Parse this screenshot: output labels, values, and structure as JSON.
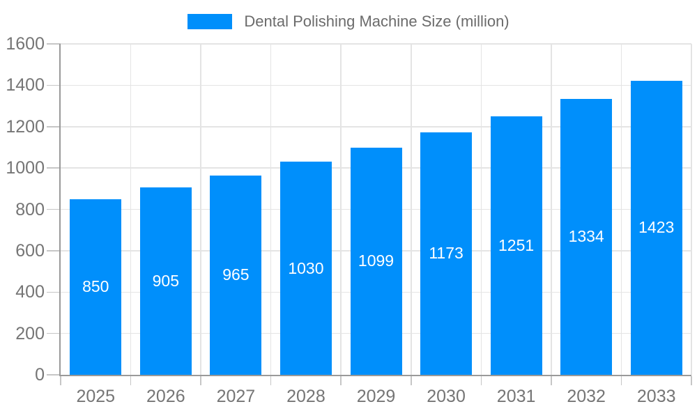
{
  "legend": {
    "label": "Dental Polishing Machine Size (million)"
  },
  "colors": {
    "bar": "#008FFB",
    "grid": "#e4e4e4",
    "axis_line": "#999999",
    "tick": "#c6c6c6",
    "axis_label": "#757575",
    "legend_label": "#6b6b6b",
    "bar_label": "#ffffff",
    "background": "#ffffff"
  },
  "chart_data": {
    "type": "bar",
    "title": "Dental Polishing Machine Size (million)",
    "categories": [
      "2025",
      "2026",
      "2027",
      "2028",
      "2029",
      "2030",
      "2031",
      "2032",
      "2033"
    ],
    "series": [
      {
        "name": "Dental Polishing Machine Size (million)",
        "values": [
          850,
          905,
          965,
          1030,
          1099,
          1173,
          1251,
          1334,
          1423
        ]
      }
    ],
    "xlabel": "",
    "ylabel": "",
    "ylim": [
      0,
      1600
    ],
    "ytick_step": 200,
    "ytick_labels": [
      "0",
      "200",
      "400",
      "600",
      "800",
      "1000",
      "1200",
      "1400",
      "1600"
    ],
    "grid": true,
    "legend_position": "top",
    "data_labels": "inside-center"
  }
}
